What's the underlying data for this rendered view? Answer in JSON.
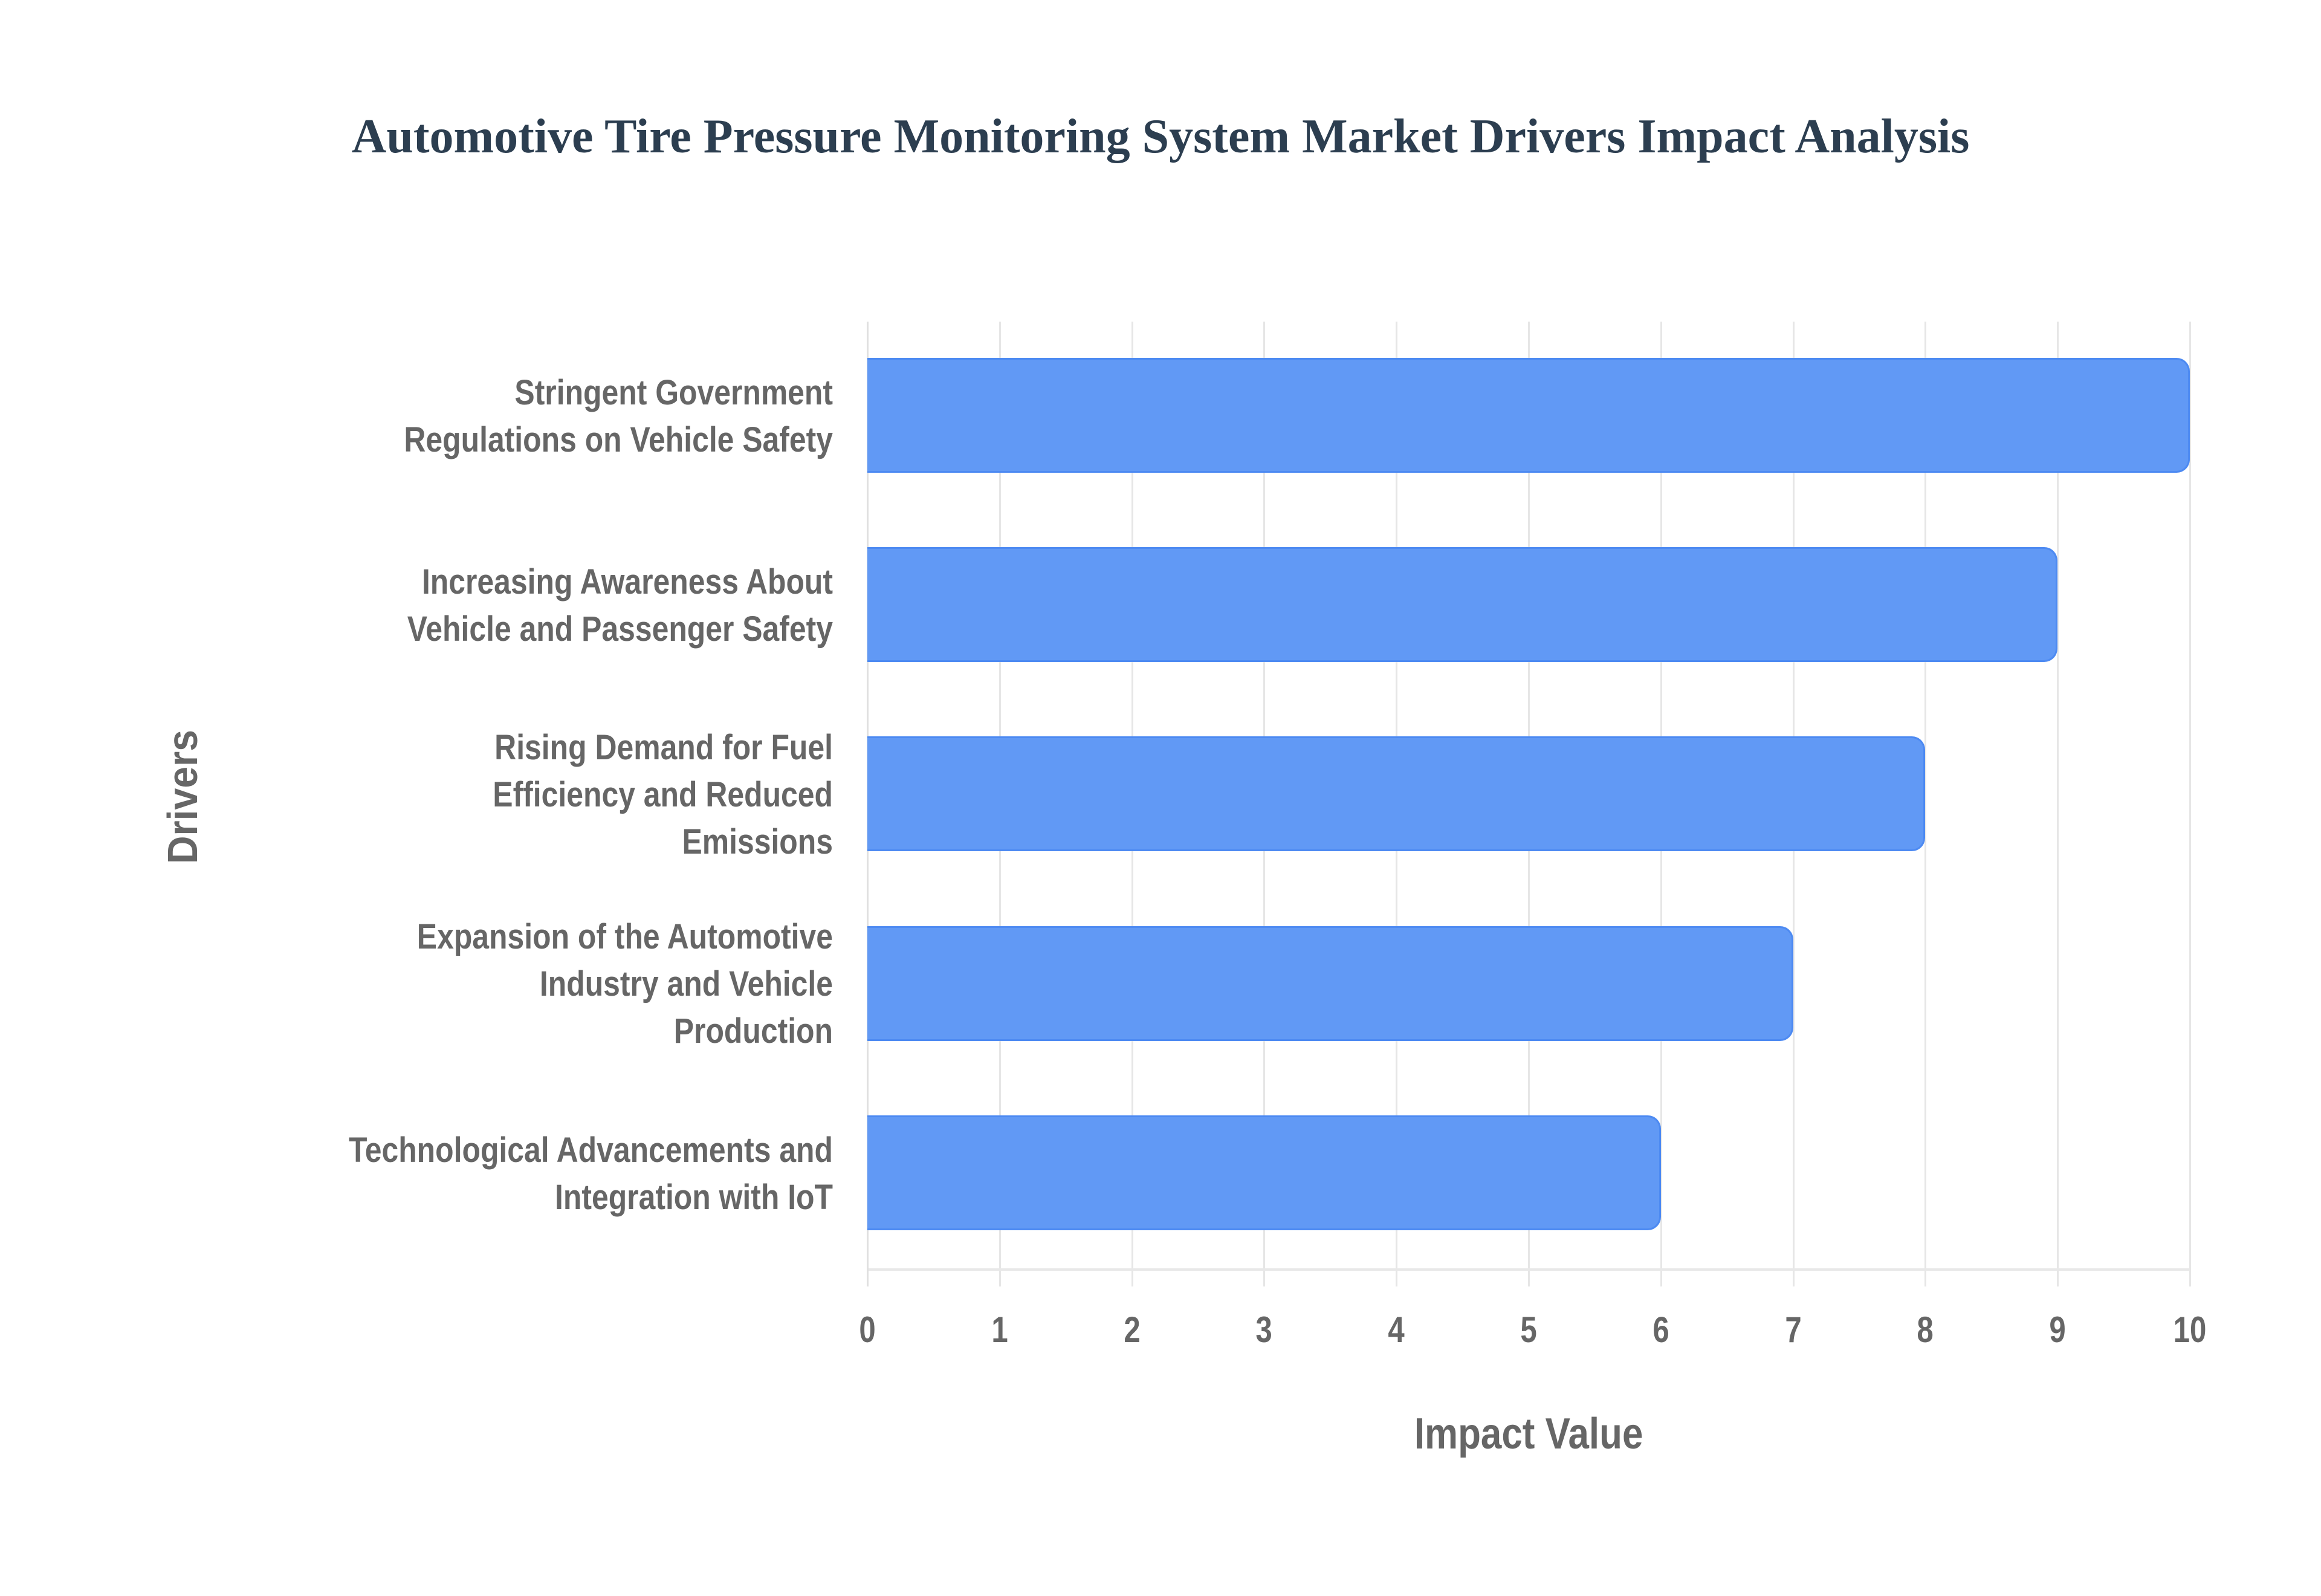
{
  "title": "Automotive Tire Pressure Monitoring System Market Drivers Impact Analysis",
  "x_axis": {
    "title": "Impact Value",
    "ticks": [
      "0",
      "1",
      "2",
      "3",
      "4",
      "5",
      "6",
      "7",
      "8",
      "9",
      "10"
    ]
  },
  "y_axis": {
    "title": "Drivers"
  },
  "drivers": [
    {
      "lines": [
        "Stringent Government",
        "Regulations on Vehicle Safety"
      ],
      "value": 10
    },
    {
      "lines": [
        "Increasing Awareness About",
        "Vehicle and Passenger Safety"
      ],
      "value": 9
    },
    {
      "lines": [
        "Rising Demand for Fuel",
        "Efficiency and Reduced",
        "Emissions"
      ],
      "value": 8
    },
    {
      "lines": [
        "Expansion of the Automotive",
        "Industry and Vehicle",
        "Production"
      ],
      "value": 7
    },
    {
      "lines": [
        "Technological Advancements and",
        "Integration with IoT"
      ],
      "value": 6
    }
  ],
  "colors": {
    "bar_fill": "#6199f5",
    "bar_border": "#4d8af2",
    "title": "#2c3e50",
    "axis_text": "#666666",
    "grid": "#e6e6e6"
  },
  "chart_data": {
    "type": "bar",
    "orientation": "horizontal",
    "title": "Automotive Tire Pressure Monitoring System Market Drivers Impact Analysis",
    "categories": [
      "Stringent Government Regulations on Vehicle Safety",
      "Increasing Awareness About Vehicle and Passenger Safety",
      "Rising Demand for Fuel Efficiency and Reduced Emissions",
      "Expansion of the Automotive Industry and Vehicle Production",
      "Technological Advancements and Integration with IoT"
    ],
    "values": [
      10,
      9,
      8,
      7,
      6
    ],
    "xlabel": "Impact Value",
    "ylabel": "Drivers",
    "xlim": [
      0,
      10
    ],
    "xticks": [
      0,
      1,
      2,
      3,
      4,
      5,
      6,
      7,
      8,
      9,
      10
    ],
    "grid": true,
    "legend": null
  }
}
